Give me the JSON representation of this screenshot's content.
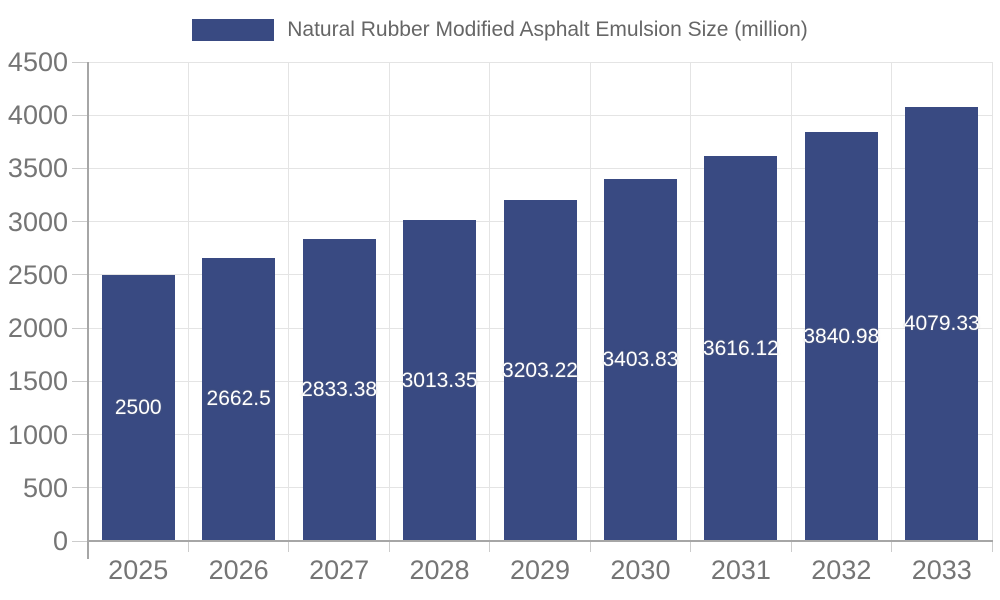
{
  "chart_data": {
    "type": "bar",
    "title": "",
    "legend": "Natural Rubber Modified Asphalt Emulsion Size (million)",
    "legend_position": "top-center",
    "categories": [
      "2025",
      "2026",
      "2027",
      "2028",
      "2029",
      "2030",
      "2031",
      "2032",
      "2033"
    ],
    "series": [
      {
        "name": "Natural Rubber Modified Asphalt Emulsion Size (million)",
        "values": [
          2500,
          2662.5,
          2833.38,
          3013.35,
          3203.22,
          3403.83,
          3616.12,
          3840.98,
          4079.33
        ],
        "value_labels": [
          "2500",
          "2662.5",
          "2833.38",
          "3013.35",
          "3203.22",
          "3403.83",
          "3616.12",
          "3840.98",
          "4079.33"
        ]
      }
    ],
    "xlabel": "",
    "ylabel": "",
    "ylim": [
      0,
      4500
    ],
    "y_ticks": [
      0,
      500,
      1000,
      1500,
      2000,
      2500,
      3000,
      3500,
      4000,
      4500
    ],
    "grid": "horizontal and vertical light gray gridlines",
    "value_label_position": "inside-center, white",
    "colors": {
      "bar": "#394A82",
      "bar_label": "#FFFFFF",
      "legend_text": "#666666",
      "axis_label": "#757575",
      "grid_line": "#E4E4E4",
      "axis_line": "#A6A6A6",
      "tick": "#CCCCCC",
      "background": "#FFFFFF"
    }
  }
}
